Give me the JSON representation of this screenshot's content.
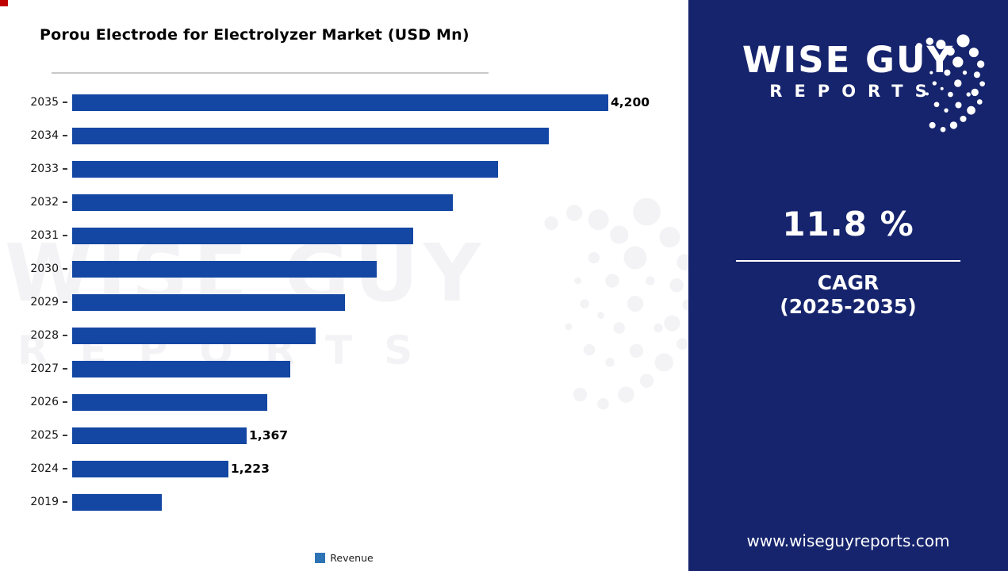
{
  "chart_data": {
    "type": "bar",
    "orientation": "horizontal",
    "title": "Porou Electrode for Electrolyzer Market (USD Mn)",
    "categories": [
      "2035",
      "2034",
      "2033",
      "2032",
      "2031",
      "2030",
      "2029",
      "2028",
      "2027",
      "2026",
      "2025",
      "2024",
      "2019"
    ],
    "values": [
      4200,
      3731,
      3337,
      2985,
      2670,
      2388,
      2136,
      1910,
      1709,
      1528,
      1367,
      1223,
      700
    ],
    "bar_labels": [
      "4,200",
      "",
      "",
      "",
      "",
      "",
      "",
      "",
      "",
      "",
      "1,367",
      "1,223",
      ""
    ],
    "xlim": [
      0,
      4200
    ],
    "legend_label": "Revenue",
    "legend_position": "bottom-center",
    "grid": false,
    "bar_color": "#1347a3",
    "legend_color": "#2e74b5"
  },
  "watermark": {
    "line1": "WISE GUY",
    "line2": "REPORTS"
  },
  "sidebar": {
    "logo_line1": "WISE GUY",
    "logo_line2": "REPORTS",
    "cagr_value": "11.8 %",
    "cagr_label": "CAGR",
    "cagr_range": "(2025-2035)",
    "website": "www.wiseguyreports.com",
    "background_color": "#16246d",
    "text_color": "#ffffff"
  }
}
